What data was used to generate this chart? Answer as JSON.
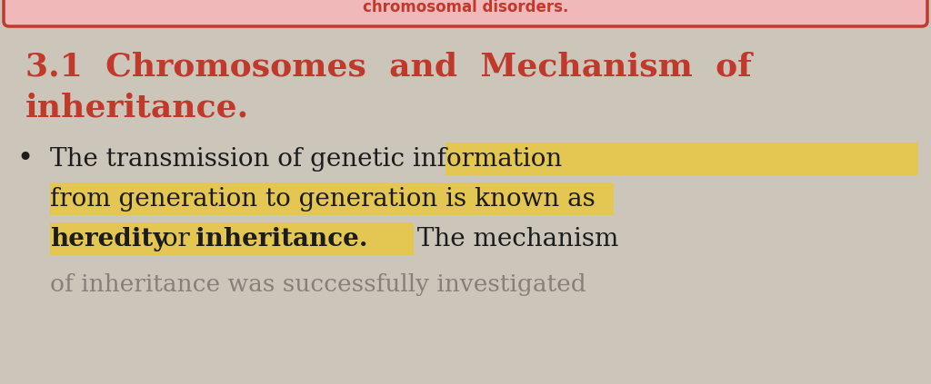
{
  "bg_color": "#ccc5b9",
  "top_bar_facecolor": "#f0b8b8",
  "top_bar_edgecolor": "#c0392b",
  "top_bar_text": "chromosomal disorders.",
  "top_bar_text_color": "#c0392b",
  "heading_line1": "3.1  Chromosomes  and  Mechanism  of",
  "heading_line2": "inheritance.",
  "heading_color": "#c0392b",
  "heading_fontsize": 26,
  "bullet_symbol": "•",
  "body_fontsize": 20,
  "body_text_color": "#1c1c1c",
  "highlight_color": "#e8c840",
  "line1": "The transmission of genetic information",
  "line2": "from generation to generation is known as",
  "line3_part1": "heredity",
  "line3_part2": " or ",
  "line3_part3": "inheritance.",
  "line3_part4": " The mechanism",
  "line4": "of inheritance was successfully investigated"
}
